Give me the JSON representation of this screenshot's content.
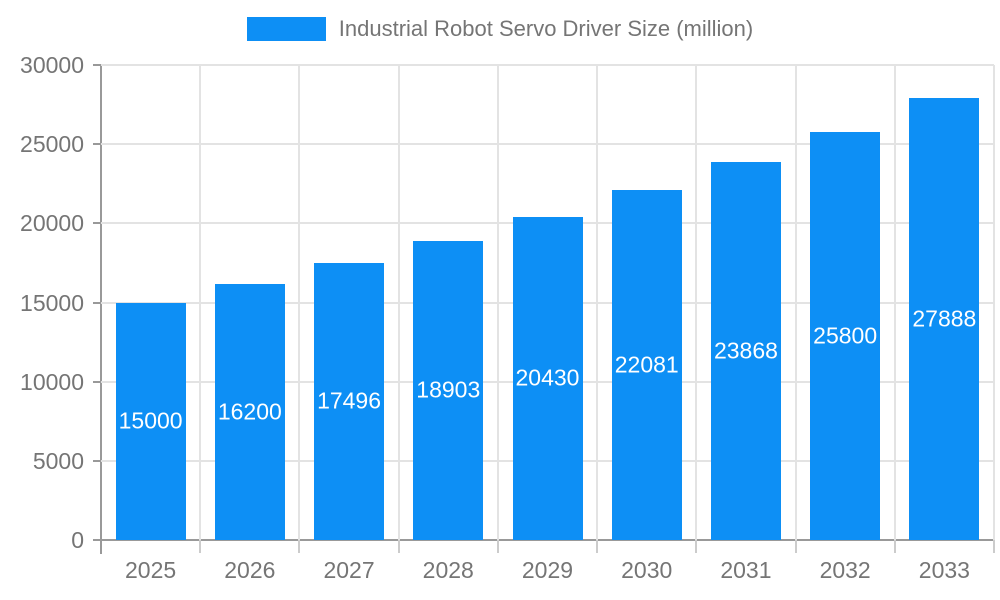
{
  "chart_data": {
    "type": "bar",
    "title": "Industrial Robot Servo Driver Size (million)",
    "legend": [
      "Industrial Robot Servo Driver Size (million)"
    ],
    "legend_position": "top-center",
    "categories": [
      "2025",
      "2026",
      "2027",
      "2028",
      "2029",
      "2030",
      "2031",
      "2032",
      "2033"
    ],
    "series": [
      {
        "name": "Industrial Robot Servo Driver Size (million)",
        "values": [
          15000,
          16200,
          17496,
          18903,
          20430,
          22081,
          23868,
          25800,
          27888
        ]
      }
    ],
    "xlabel": "",
    "ylabel": "",
    "ylim": [
      0,
      30000
    ],
    "yticks": [
      0,
      5000,
      10000,
      15000,
      20000,
      25000,
      30000
    ],
    "grid": true,
    "value_labels": "inside-middle",
    "colors": {
      "bar": "#0d8ff5",
      "bar_label": "#ffffff",
      "grid": "#e3e3e3",
      "axis": "#999999",
      "boundary_tick": "#cccccc",
      "tick_label": "#757575",
      "background": "#ffffff"
    }
  }
}
